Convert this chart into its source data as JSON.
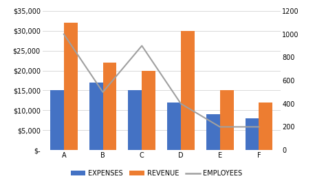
{
  "categories": [
    "A",
    "B",
    "C",
    "D",
    "E",
    "F"
  ],
  "expenses": [
    15000,
    17000,
    15000,
    12000,
    9000,
    8000
  ],
  "revenue": [
    32000,
    22000,
    20000,
    30000,
    15000,
    12000
  ],
  "employees": [
    1000,
    500,
    900,
    400,
    200,
    200
  ],
  "bar_color_expenses": "#4472C4",
  "bar_color_revenue": "#ED7D31",
  "line_color_employees": "#A0A0A0",
  "ylim_left": [
    0,
    35000
  ],
  "ylim_right": [
    0,
    1200
  ],
  "yticks_left": [
    0,
    5000,
    10000,
    15000,
    20000,
    25000,
    30000,
    35000
  ],
  "yticks_right": [
    0,
    200,
    400,
    600,
    800,
    1000,
    1200
  ],
  "legend_labels": [
    "EXPENSES",
    "REVENUE",
    "EMPLOYEES"
  ],
  "background_color": "#FFFFFF",
  "plot_bg_color": "#FFFFFF",
  "grid_color": "#D9D9D9",
  "bar_width": 0.35,
  "tick_fontsize": 7.0,
  "legend_fontsize": 7.0,
  "fig_width": 4.74,
  "fig_height": 2.66,
  "dpi": 100
}
